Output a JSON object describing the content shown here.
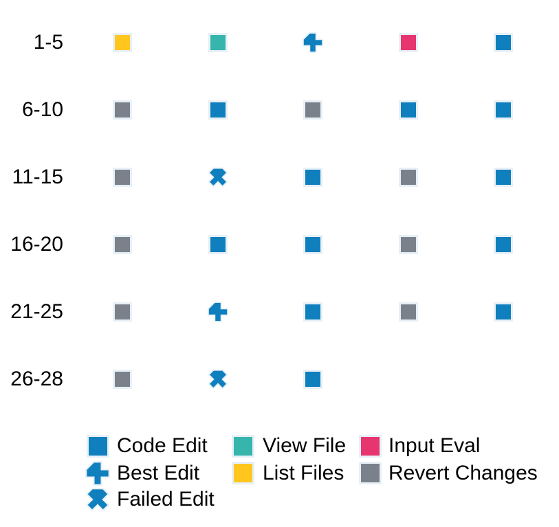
{
  "chart_data": {
    "type": "scatter",
    "description": "Grid of categorical action markers per step range with legend",
    "title": "",
    "xlabel": "",
    "ylabel": "",
    "grid": false,
    "legend_position": "bottom",
    "row_categories": [
      "1-5",
      "6-10",
      "11-15",
      "16-20",
      "21-25",
      "26-28"
    ],
    "rows": [
      {
        "label": "1-5",
        "steps": [
          "list_files",
          "view_file",
          "best_edit",
          "input_eval",
          "code_edit"
        ]
      },
      {
        "label": "6-10",
        "steps": [
          "revert_changes",
          "code_edit",
          "revert_changes",
          "code_edit",
          "code_edit"
        ]
      },
      {
        "label": "11-15",
        "steps": [
          "revert_changes",
          "failed_edit",
          "code_edit",
          "revert_changes",
          "code_edit"
        ]
      },
      {
        "label": "16-20",
        "steps": [
          "revert_changes",
          "code_edit",
          "code_edit",
          "revert_changes",
          "code_edit"
        ]
      },
      {
        "label": "21-25",
        "steps": [
          "revert_changes",
          "best_edit",
          "code_edit",
          "revert_changes",
          "code_edit"
        ]
      },
      {
        "label": "26-28",
        "steps": [
          "revert_changes",
          "failed_edit",
          "code_edit"
        ]
      }
    ],
    "marker_types": {
      "code_edit": {
        "label": "Code Edit",
        "shape": "square",
        "color": "#0f7fbe"
      },
      "view_file": {
        "label": "View File",
        "shape": "square",
        "color": "#35b5ab"
      },
      "input_eval": {
        "label": "Input Eval",
        "shape": "square",
        "color": "#e7356f"
      },
      "best_edit": {
        "label": "Best Edit",
        "shape": "plus",
        "color": "#0f7fbe"
      },
      "list_files": {
        "label": "List Files",
        "shape": "square",
        "color": "#ffc61e"
      },
      "revert_changes": {
        "label": "Revert Changes",
        "shape": "square",
        "color": "#7a818b"
      },
      "failed_edit": {
        "label": "Failed Edit",
        "shape": "cross",
        "color": "#0f7fbe"
      }
    },
    "legend_columns": [
      [
        "code_edit",
        "best_edit",
        "failed_edit"
      ],
      [
        "view_file",
        "list_files"
      ],
      [
        "input_eval",
        "revert_changes"
      ]
    ],
    "marker_edge_color": "#e7f0f6",
    "background_color": "#ffffff",
    "text_color": "#000000"
  }
}
